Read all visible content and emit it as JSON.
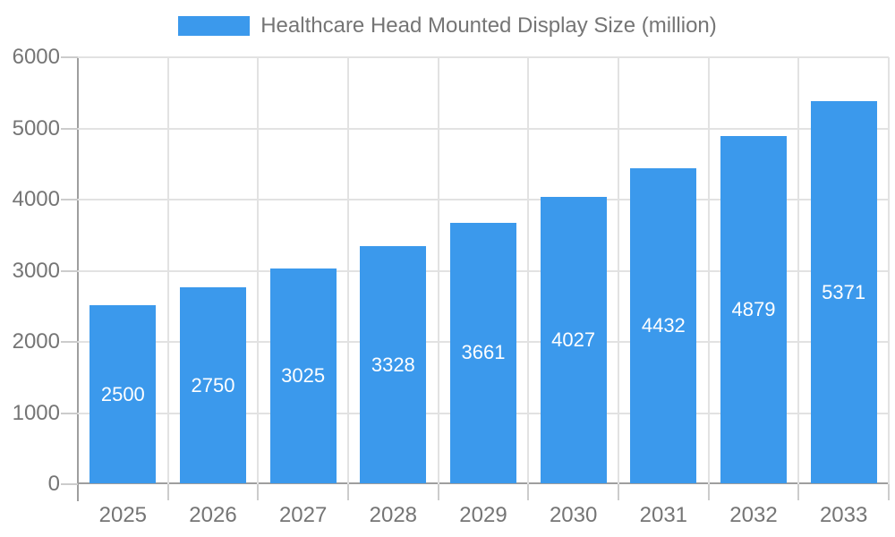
{
  "legend": {
    "label": "Healthcare Head Mounted Display Size (million)"
  },
  "colors": {
    "bar": "#3b99ec",
    "bar_label": "#ffffff",
    "axis": "#9e9e9e",
    "grid": "#e2e2e2",
    "tick": "#cccccc",
    "text": "#757575",
    "background": "#ffffff"
  },
  "chart_data": {
    "type": "bar",
    "title": "Healthcare Head Mounted Display Size (million)",
    "categories": [
      "2025",
      "2026",
      "2027",
      "2028",
      "2029",
      "2030",
      "2031",
      "2032",
      "2033"
    ],
    "values": [
      2500,
      2750,
      3025,
      3328,
      3661,
      4027,
      4432,
      4879,
      5371
    ],
    "series": [
      {
        "name": "Healthcare Head Mounted Display Size (million)",
        "values": [
          2500,
          2750,
          3025,
          3328,
          3661,
          4027,
          4432,
          4879,
          5371
        ]
      }
    ],
    "xlabel": "",
    "ylabel": "",
    "ylim": [
      0,
      6000
    ],
    "yticks": [
      0,
      1000,
      2000,
      3000,
      4000,
      5000,
      6000
    ],
    "grid": true,
    "legend_position": "top-center",
    "bar_value_labels": "inside-center"
  }
}
